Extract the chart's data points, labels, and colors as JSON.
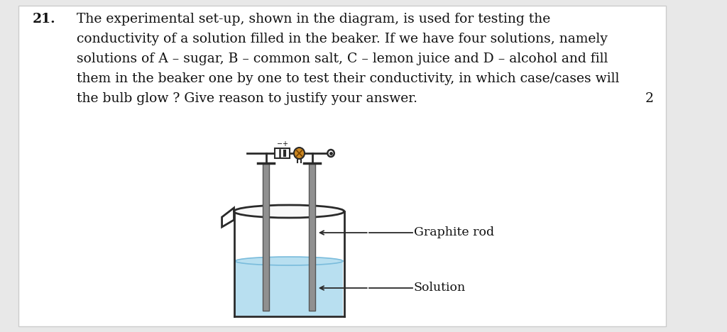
{
  "background_color": "#e8e8e8",
  "page_background": "#ffffff",
  "question_number": "21.",
  "question_text_lines": [
    "The experimental set-up, shown in the diagram, is used for testing the",
    "conductivity of a solution filled in the beaker. If we have four solutions, namely",
    "solutions of A – sugar, B – common salt, C – lemon juice and D – alcohol and fill",
    "them in the beaker one by one to test their conductivity, in which case/cases will",
    "the bulb glow ? Give reason to justify your answer."
  ],
  "marks": "2",
  "beaker_outline": "#2a2a2a",
  "solution_color": "#b8dff0",
  "wire_color": "#2a2a2a",
  "label_graphite": "Graphite rod",
  "label_solution": "Solution",
  "font_size_text": 13.5,
  "font_size_labels": 12.5
}
